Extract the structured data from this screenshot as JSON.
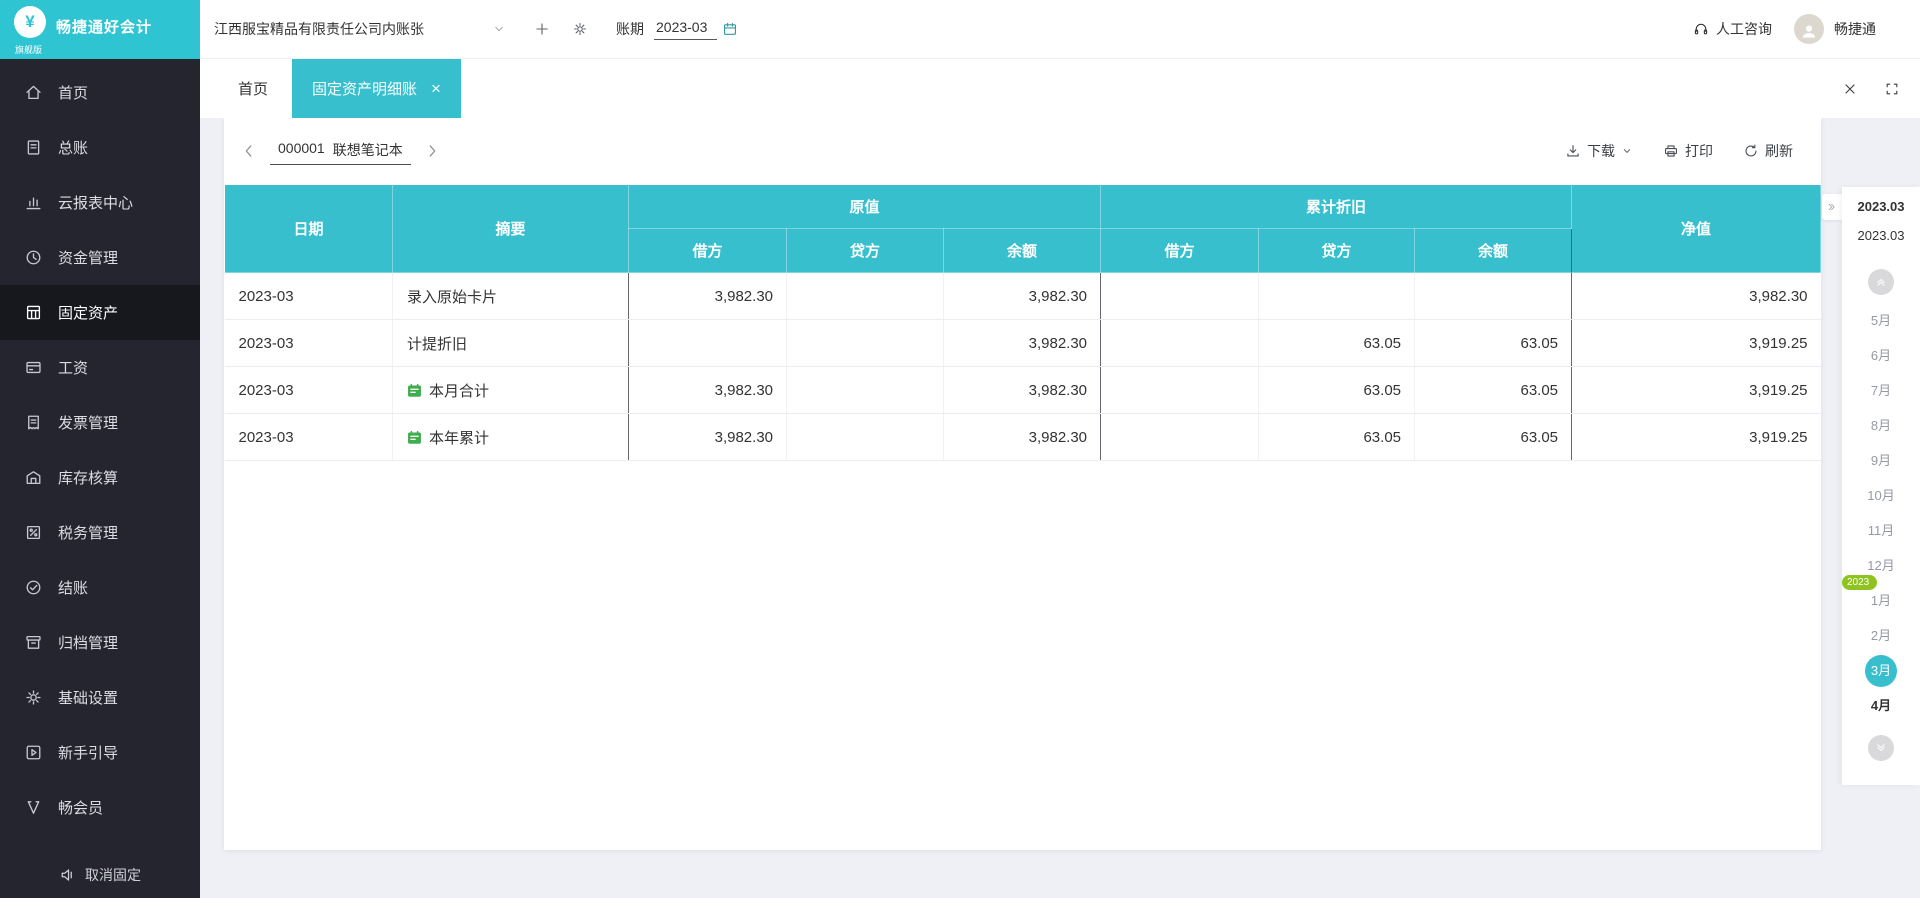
{
  "colors": {
    "accent": "#38bfce",
    "accent_logo": "#2fc4d2",
    "sidebar_bg": "#25252f",
    "sidebar_active_bg": "#17171e",
    "row_icon_green": "#3fae4e",
    "badge_green": "#8fc31f",
    "content_bg": "#eef0f5"
  },
  "sidebar": {
    "logo_title": "畅捷通好会计",
    "logo_subtitle": "旗舰版",
    "items": [
      {
        "label": "首页",
        "icon": "home",
        "active": false
      },
      {
        "label": "总账",
        "icon": "ledger",
        "active": false
      },
      {
        "label": "云报表中心",
        "icon": "report",
        "active": false
      },
      {
        "label": "资金管理",
        "icon": "fund",
        "active": false
      },
      {
        "label": "固定资产",
        "icon": "asset",
        "active": true
      },
      {
        "label": "工资",
        "icon": "salary",
        "active": false
      },
      {
        "label": "发票管理",
        "icon": "invoice",
        "active": false
      },
      {
        "label": "库存核算",
        "icon": "inventory",
        "active": false
      },
      {
        "label": "税务管理",
        "icon": "tax",
        "active": false
      },
      {
        "label": "结账",
        "icon": "closing",
        "active": false
      },
      {
        "label": "归档管理",
        "icon": "archive",
        "active": false
      },
      {
        "label": "基础设置",
        "icon": "settings",
        "active": false
      },
      {
        "label": "新手引导",
        "icon": "guide",
        "active": false
      },
      {
        "label": "畅会员",
        "icon": "member",
        "active": false
      }
    ],
    "unpin_label": "取消固定"
  },
  "topbar": {
    "company": "江西服宝精品有限责任公司内账张",
    "period_label": "账期",
    "period_value": "2023-03",
    "support_label": "人工咨询",
    "user_label": "畅捷通"
  },
  "tabs": [
    {
      "label": "首页",
      "active": false
    },
    {
      "label": "固定资产明细账",
      "active": true
    }
  ],
  "toolbar": {
    "asset_code": "000001",
    "asset_name": "联想笔记本",
    "download_label": "下载",
    "print_label": "打印",
    "refresh_label": "刷新"
  },
  "table": {
    "headers": {
      "date": "日期",
      "summary": "摘要",
      "original": "原值",
      "accumulated": "累计折旧",
      "net": "净值",
      "debit": "借方",
      "credit": "贷方",
      "balance": "余额"
    },
    "rows": [
      {
        "date": "2023-03",
        "summary": "录入原始卡片",
        "summary_icon": false,
        "orig_debit": "3,982.30",
        "orig_credit": "",
        "orig_balance": "3,982.30",
        "acc_debit": "",
        "acc_credit": "",
        "acc_balance": "",
        "net": "3,982.30"
      },
      {
        "date": "2023-03",
        "summary": "计提折旧",
        "summary_icon": false,
        "orig_debit": "",
        "orig_credit": "",
        "orig_balance": "3,982.30",
        "acc_debit": "",
        "acc_credit": "63.05",
        "acc_balance": "63.05",
        "net": "3,919.25"
      },
      {
        "date": "2023-03",
        "summary": "本月合计",
        "summary_icon": true,
        "orig_debit": "3,982.30",
        "orig_credit": "",
        "orig_balance": "3,982.30",
        "acc_debit": "",
        "acc_credit": "63.05",
        "acc_balance": "63.05",
        "net": "3,919.25"
      },
      {
        "date": "2023-03",
        "summary": "本年累计",
        "summary_icon": true,
        "orig_debit": "3,982.30",
        "orig_credit": "",
        "orig_balance": "3,982.30",
        "acc_debit": "",
        "acc_credit": "63.05",
        "acc_balance": "63.05",
        "net": "3,919.25"
      }
    ]
  },
  "calendar": {
    "period_display": "2023.03",
    "period_selected": "2023.03",
    "months_before_badge": [
      "5月",
      "6月",
      "7月",
      "8月",
      "9月",
      "10月",
      "11月",
      "12月"
    ],
    "year_badge": "2023",
    "months_after_badge": [
      "1月",
      "2月",
      "3月",
      "4月"
    ],
    "active_month": "3月",
    "emphasis_month": "4月"
  }
}
